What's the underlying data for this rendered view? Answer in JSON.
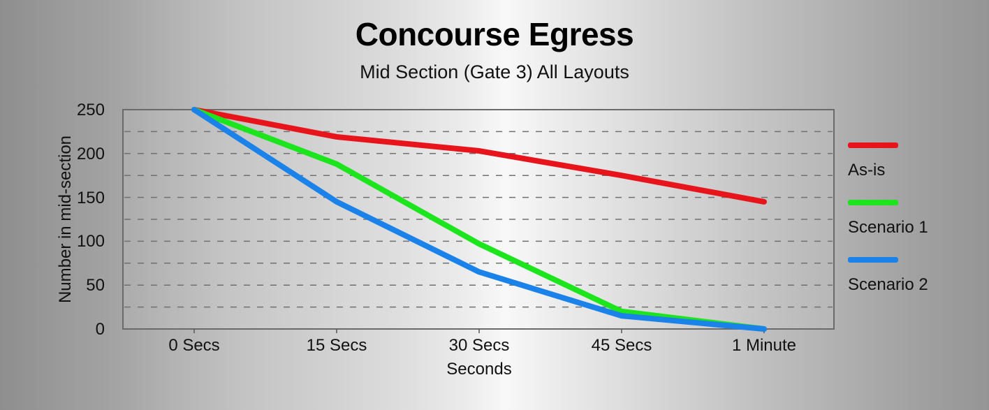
{
  "chart_data": {
    "type": "line",
    "title": "Concourse Egress",
    "subtitle": "Mid Section (Gate 3) All Layouts",
    "xlabel": "Seconds",
    "ylabel": "Number in mid-section",
    "categories": [
      "0 Secs",
      "15 Secs",
      "30 Secs",
      "45 Secs",
      "1 Minute"
    ],
    "yticks": [
      "250",
      "200",
      "150",
      "100",
      "50",
      "0"
    ],
    "ylim": [
      0,
      250
    ],
    "grid": {
      "horizontal": true,
      "style": "dashed",
      "step": 25
    },
    "legend_position": "right",
    "series": [
      {
        "name": "As-is",
        "color": "#e8141c",
        "values": [
          250,
          219,
          203,
          175,
          145
        ]
      },
      {
        "name": "Scenario 1",
        "color": "#1de51d",
        "values": [
          250,
          188,
          97,
          20,
          0
        ]
      },
      {
        "name": "Scenario 2",
        "color": "#1a82e8",
        "values": [
          250,
          145,
          65,
          15,
          0
        ]
      }
    ]
  }
}
